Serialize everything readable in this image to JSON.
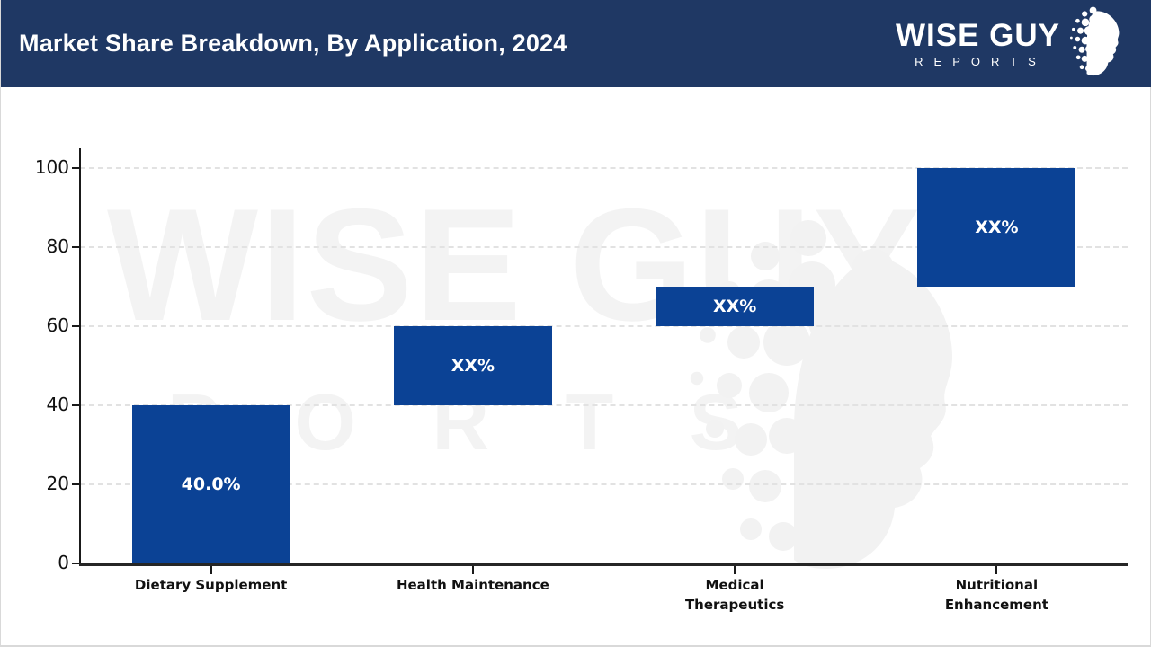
{
  "header": {
    "title": "Market Share Breakdown, By Application, 2024",
    "logo": {
      "line1": "WISE GUY",
      "line2": "REPORTS"
    },
    "bg_color": "#1f3864"
  },
  "watermark": {
    "line1": "WISE GUY",
    "line2": "P O R T S"
  },
  "chart_data": {
    "type": "bar",
    "subtype": "waterfall",
    "title": "Market Share Breakdown, By Application, 2024",
    "categories": [
      "Dietary Supplement",
      "Health Maintenance",
      "Medical\nTherapeutics",
      "Nutritional\nEnhancement"
    ],
    "segments": [
      {
        "category": "Dietary Supplement",
        "start": 0,
        "end": 40,
        "label": "40.0%"
      },
      {
        "category": "Health Maintenance",
        "start": 40,
        "end": 60,
        "label": "XX%"
      },
      {
        "category": "Medical Therapeutics",
        "start": 60,
        "end": 70,
        "label": "XX%"
      },
      {
        "category": "Nutritional Enhancement",
        "start": 70,
        "end": 100,
        "label": "XX%"
      }
    ],
    "xlabel": "",
    "ylabel": "",
    "y_ticks": [
      0,
      20,
      40,
      60,
      80,
      100
    ],
    "ylim": [
      0,
      104
    ],
    "grid": "horizontal-dashed",
    "legend": "none",
    "bar_color": "#0b4295",
    "grid_color": "#e2e2e2",
    "axis_color": "#1a1a1a",
    "watermark_color": "#f2f2f2"
  }
}
